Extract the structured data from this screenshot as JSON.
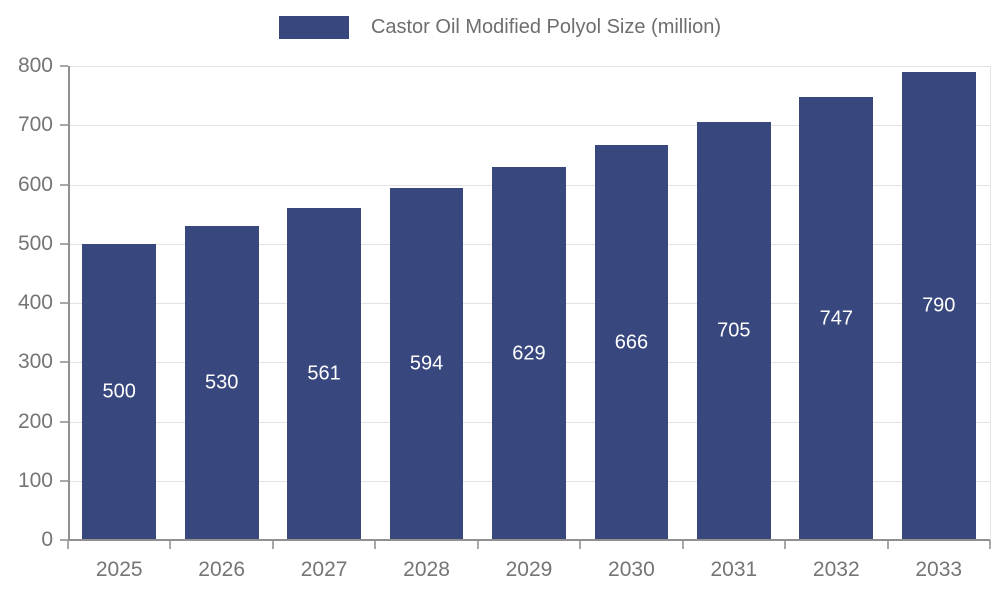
{
  "chart_data": {
    "type": "bar",
    "title": "Castor Oil Modified Polyol Size (million)",
    "categories": [
      "2025",
      "2026",
      "2027",
      "2028",
      "2029",
      "2030",
      "2031",
      "2032",
      "2033"
    ],
    "values": [
      500,
      530,
      561,
      594,
      629,
      666,
      705,
      747,
      790
    ],
    "xlabel": "",
    "ylabel": "",
    "ylim": [
      0,
      800
    ],
    "ytick_interval": 100,
    "yticks": [
      0,
      100,
      200,
      300,
      400,
      500,
      600,
      700,
      800
    ],
    "grid": true,
    "legend_position": "top",
    "value_labels": "inside-center",
    "colors": {
      "bar": "#38487F",
      "value_label": "#FFFFFF",
      "axis_text": "#757575",
      "title_text": "#6E6E6E",
      "gridline": "#E3E3E3",
      "spine": "#909090",
      "tick": "#A8A8A8",
      "background": "#FFFFFF"
    }
  },
  "legend": {
    "items": [
      {
        "label": "Castor Oil Modified Polyol Size (million)",
        "swatch_color": "#38487F"
      }
    ]
  }
}
